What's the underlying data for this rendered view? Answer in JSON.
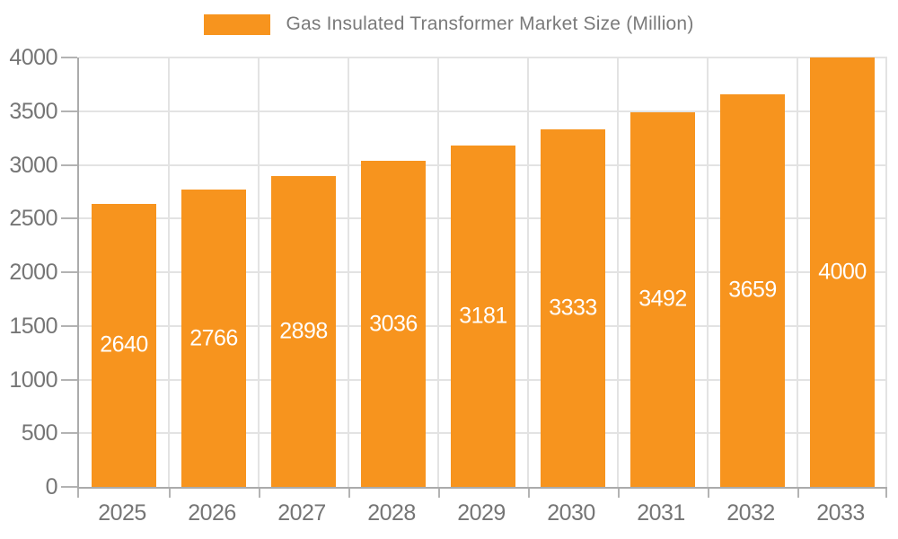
{
  "chart_data": {
    "type": "bar",
    "title": "Gas Insulated Transformer Market Size (Million)",
    "categories": [
      "2025",
      "2026",
      "2027",
      "2028",
      "2029",
      "2030",
      "2031",
      "2032",
      "2033"
    ],
    "values": [
      2640,
      2766,
      2898,
      3036,
      3181,
      3333,
      3492,
      3659,
      4000
    ],
    "xlabel": "",
    "ylabel": "",
    "ylim": [
      0,
      4000
    ],
    "yticks": [
      0,
      500,
      1000,
      1500,
      2000,
      2500,
      3000,
      3500,
      4000
    ],
    "grid": true,
    "legend_position": "top",
    "value_labels": "inside-center",
    "colors": {
      "bar": "#F7941E",
      "bar_label_text": "#FFFFFF",
      "axis_line": "#ABABAB",
      "tick_mark": "#B3B3B3",
      "gridline": "#E3E3E3",
      "tick_label_text": "#757575",
      "legend_text": "#7A7A7A",
      "background": "#FFFFFF"
    }
  }
}
